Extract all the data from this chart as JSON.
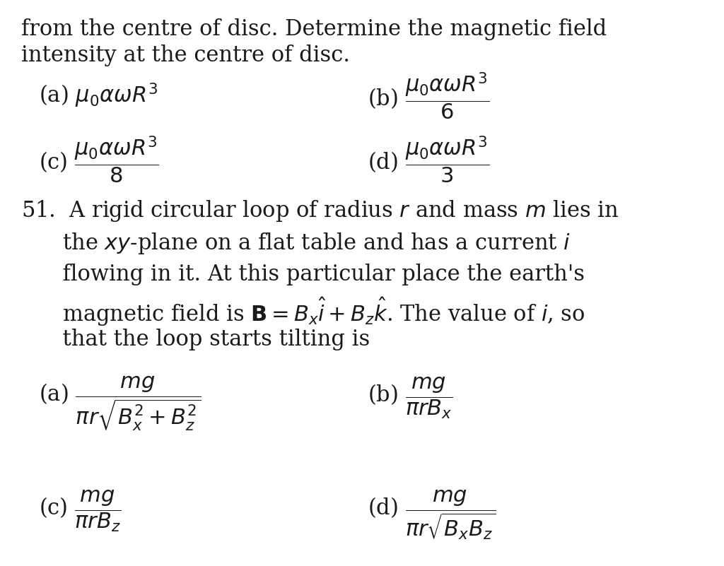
{
  "bg_color": "#ffffff",
  "text_color": "#1a1a1a",
  "figsize": [
    10.24,
    8.01
  ],
  "dpi": 100,
  "header_line1": "from the centre of disc. Determine the magnetic field",
  "header_line2": "intensity at the centre of disc.",
  "q50a": "(a) $\\mu_0\\alpha\\omega R^3$",
  "q50b": "(b) $\\dfrac{\\mu_0\\alpha\\omega R^3}{6}$",
  "q50c": "(c) $\\dfrac{\\mu_0\\alpha\\omega R^3}{8}$",
  "q50d": "(d) $\\dfrac{\\mu_0\\alpha\\omega R^3}{3}$",
  "q51_l1": "51.  A rigid circular loop of radius $r$ and mass $m$ lies in",
  "q51_l2": "      the $xy$-plane on a flat table and has a current $i$",
  "q51_l3": "      flowing in it. At this particular place the earth's",
  "q51_l4": "      magnetic field is $\\mathbf{B} = B_x\\hat{i} + B_z\\hat{k}$. The value of $i$, so",
  "q51_l5": "      that the loop starts tilting is",
  "q51a": "(a) $\\dfrac{mg}{\\pi r\\sqrt{B_x^2 + B_z^2}}$",
  "q51b": "(b) $\\dfrac{mg}{\\pi r B_x}$",
  "q51c": "(c) $\\dfrac{mg}{\\pi r B_z}$",
  "q51d": "(d) $\\dfrac{mg}{\\pi r\\sqrt{B_x B_z}}$",
  "fontsize_header": 22,
  "fontsize_body": 22,
  "fontsize_math": 22
}
